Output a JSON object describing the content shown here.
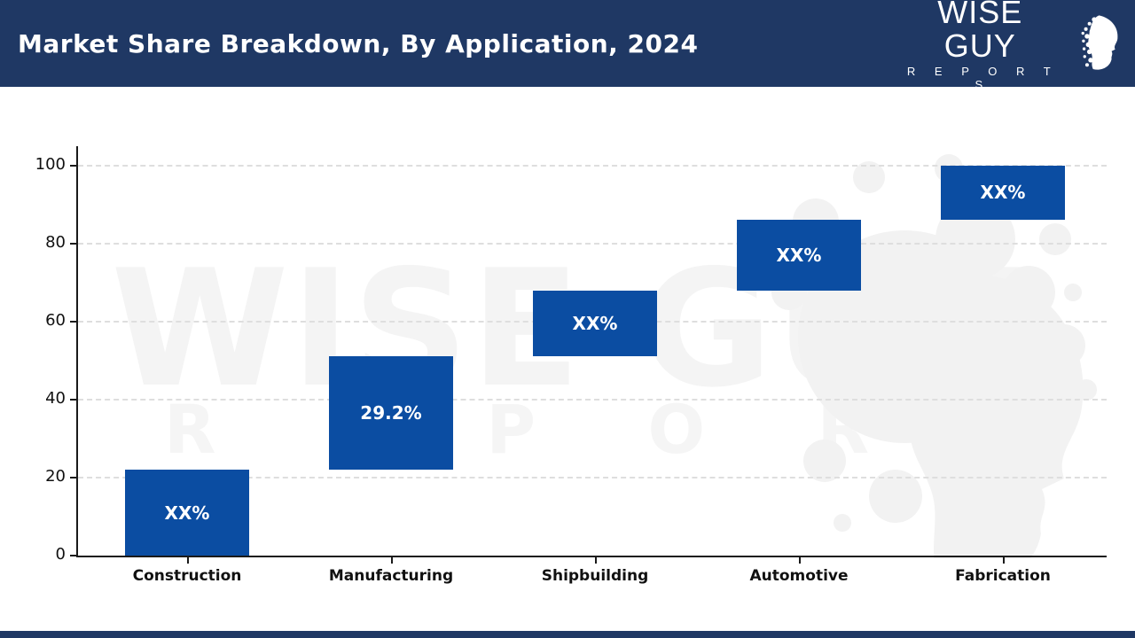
{
  "header": {
    "title": "Market Share Breakdown, By Application, 2024",
    "bg_color": "#1f3864",
    "logo": {
      "line1": "WISE GUY",
      "line2": "R E P O R T S"
    }
  },
  "watermark": {
    "line1": "WISE GUY",
    "line2": "R E P O R T S"
  },
  "chart_data": {
    "type": "bar",
    "variant": "waterfall",
    "title": "Market Share Breakdown, By Application, 2024",
    "categories": [
      "Construction",
      "Manufacturing",
      "Shipbuilding",
      "Automotive",
      "Fabrication"
    ],
    "segments": [
      {
        "category": "Construction",
        "start": 0,
        "end": 22,
        "label": "XX%"
      },
      {
        "category": "Manufacturing",
        "start": 22,
        "end": 51.2,
        "label": "29.2%"
      },
      {
        "category": "Shipbuilding",
        "start": 51.2,
        "end": 68,
        "label": "XX%"
      },
      {
        "category": "Automotive",
        "start": 68,
        "end": 86.2,
        "label": "XX%"
      },
      {
        "category": "Fabrication",
        "start": 86.2,
        "end": 100,
        "label": "XX%"
      }
    ],
    "yticks": [
      0,
      20,
      40,
      60,
      80,
      100
    ],
    "ylim": [
      0,
      100
    ],
    "xlabel": "",
    "ylabel": "",
    "grid": "horizontal-dashed",
    "legend": "none",
    "bar_color": "#0b4da2",
    "bar_label_color": "#ffffff",
    "gridline_color": "#dedede",
    "axis_color": "#1a1a1a"
  },
  "footer": {
    "bar_color": "#1f3864"
  }
}
